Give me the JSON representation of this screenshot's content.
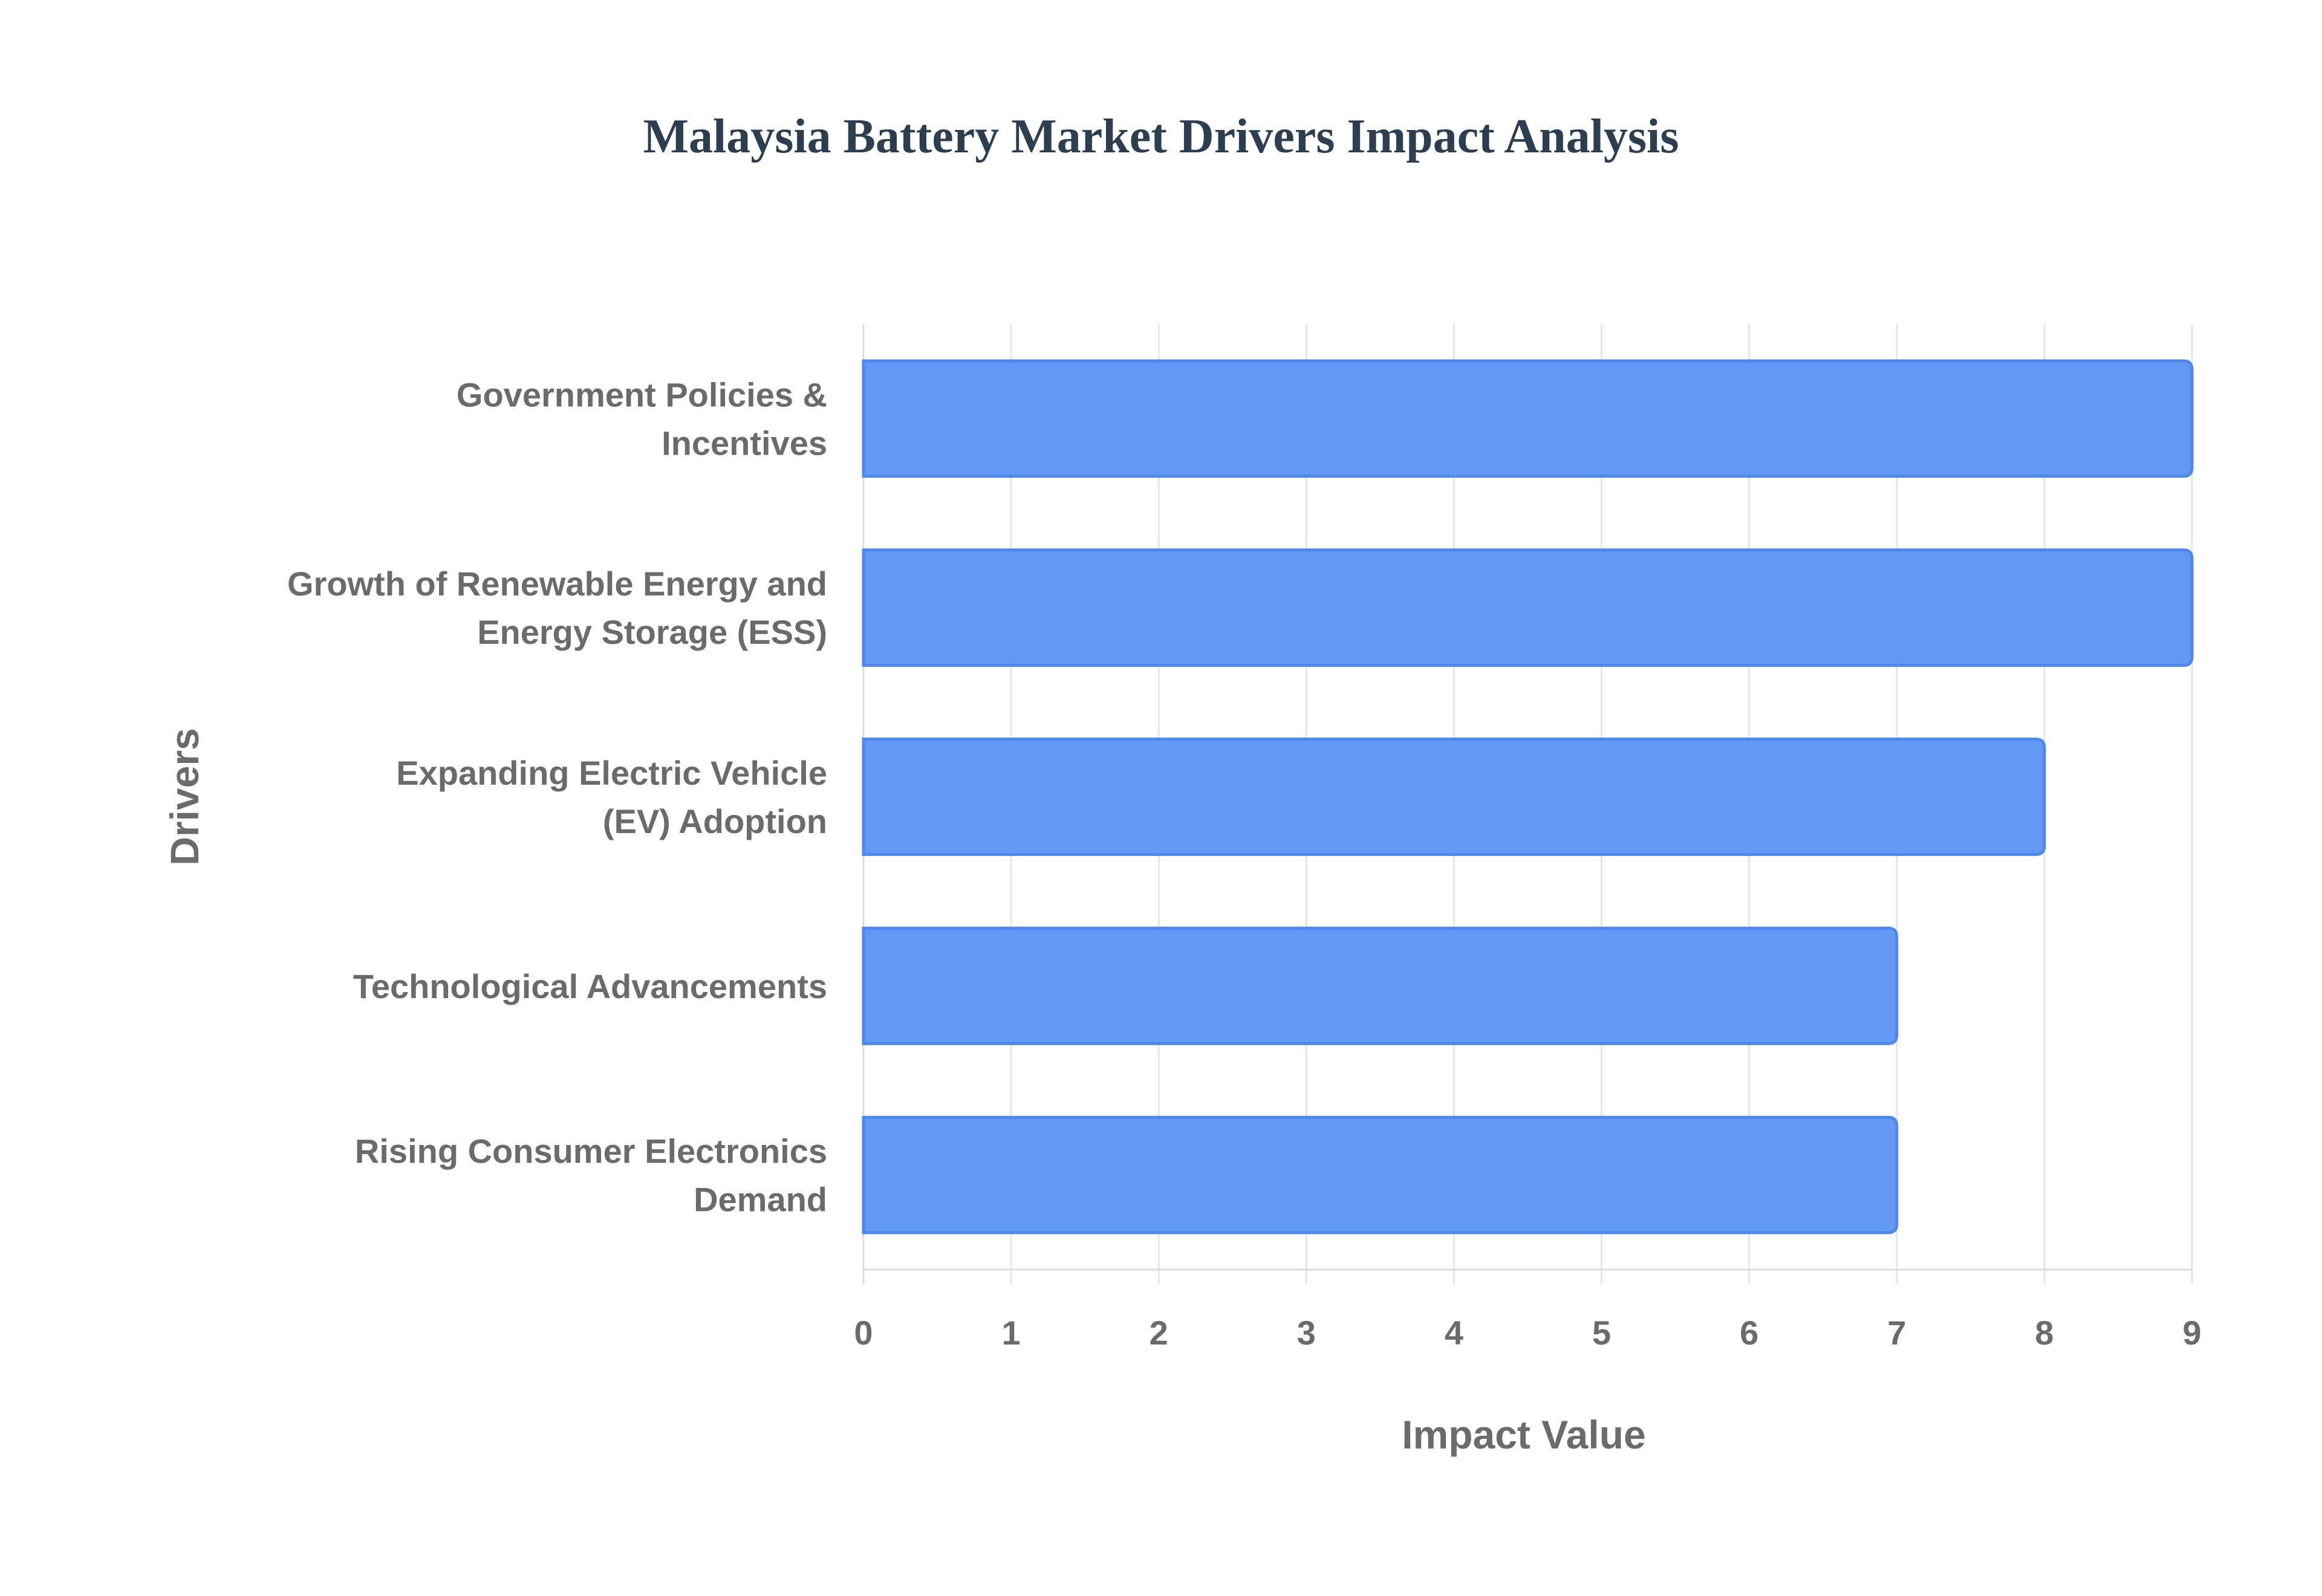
{
  "chart_data": {
    "type": "bar",
    "orientation": "horizontal",
    "title": "Malaysia Battery Market Drivers Impact Analysis",
    "xlabel": "Impact Value",
    "ylabel": "Drivers",
    "xlim": [
      0,
      9
    ],
    "x_ticks": [
      "0",
      "1",
      "2",
      "3",
      "4",
      "5",
      "6",
      "7",
      "8",
      "9"
    ],
    "grid": true,
    "categories": [
      [
        "Government Policies &",
        "Incentives"
      ],
      [
        "Growth of Renewable Energy and",
        "Energy Storage (ESS)"
      ],
      [
        "Expanding Electric Vehicle",
        "(EV) Adoption"
      ],
      [
        "Technological Advancements"
      ],
      [
        "Rising Consumer Electronics",
        "Demand"
      ]
    ],
    "values": [
      9,
      9,
      8,
      7,
      7
    ],
    "bar_color": "#6199f4",
    "bar_border_color": "#4f88ec"
  }
}
